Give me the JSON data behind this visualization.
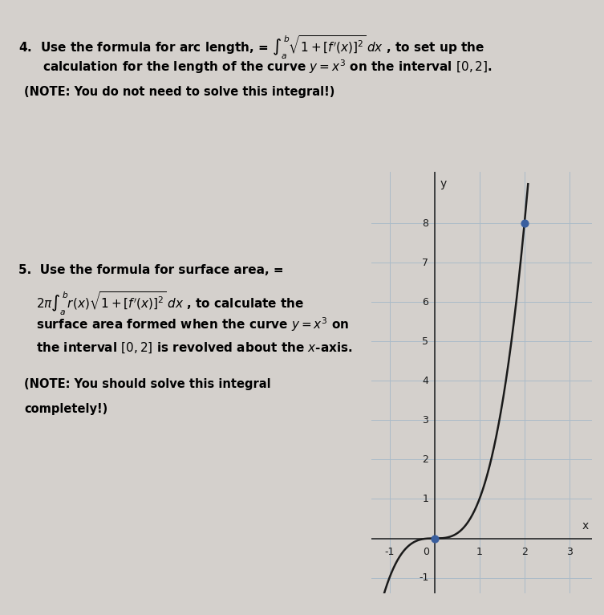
{
  "background_color": "#d4d0cc",
  "text_color": "#000000",
  "fig_width": 7.53,
  "fig_height": 7.66,
  "dpi": 100,
  "xlim": [
    -1.4,
    3.5
  ],
  "ylim": [
    -1.4,
    9.3
  ],
  "xticks": [
    -1,
    0,
    1,
    2,
    3
  ],
  "yticks": [
    -1,
    0,
    1,
    2,
    3,
    4,
    5,
    6,
    7,
    8
  ],
  "curve_color": "#1a1a1a",
  "curve_lw": 1.8,
  "endpoint_color": "#3a5f9f",
  "endpoint_size": 40,
  "grid_color": "#aabbc8",
  "grid_lw": 0.7,
  "axis_color": "#1a1a1a",
  "tick_label_size": 9,
  "xlabel": "x",
  "ylabel": "y"
}
